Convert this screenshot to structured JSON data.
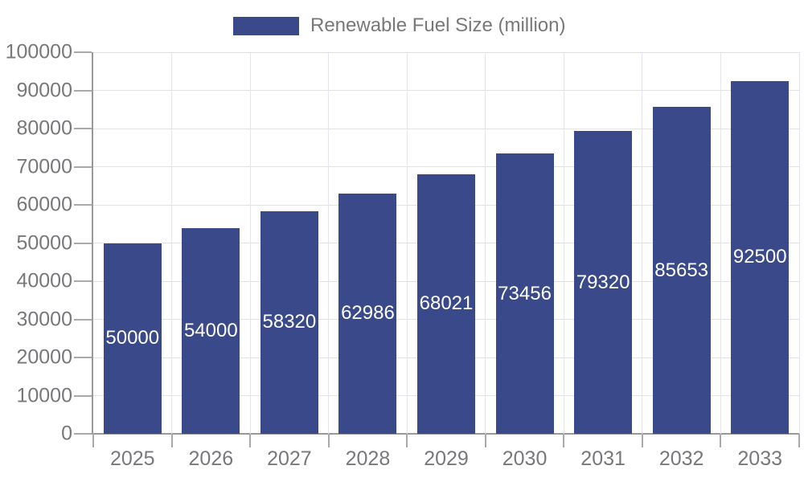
{
  "legend": {
    "label": "Renewable Fuel Size (million)"
  },
  "chart_data": {
    "type": "bar",
    "title": "",
    "categories": [
      "2025",
      "2026",
      "2027",
      "2028",
      "2029",
      "2030",
      "2031",
      "2032",
      "2033"
    ],
    "series": [
      {
        "name": "Renewable Fuel Size (million)",
        "values": [
          50000,
          54000,
          58320,
          62986,
          68021,
          73456,
          79320,
          85653,
          92500
        ]
      }
    ],
    "value_labels": [
      "50000",
      "54000",
      "58320",
      "62986",
      "68021",
      "73456",
      "79320",
      "85653",
      "92500"
    ],
    "value_label_position": "inside-center",
    "xlabel": "",
    "ylabel": "",
    "ylim": [
      0,
      100000
    ],
    "ytick_step": 10000,
    "ytick_labels": [
      "0",
      "10000",
      "20000",
      "30000",
      "40000",
      "50000",
      "60000",
      "70000",
      "80000",
      "90000",
      "100000"
    ],
    "grid": true,
    "legend_position": "top-center"
  },
  "colors": {
    "bar": "#3A4989",
    "value_label": "#FFFFFF",
    "axis_text": "#78787C",
    "legend_text": "#78787C",
    "axis_line": "#999999",
    "tick": "#AAAAAA",
    "grid_horizontal": "#E2E2E2",
    "grid_vertical": "#E3E4EE"
  }
}
